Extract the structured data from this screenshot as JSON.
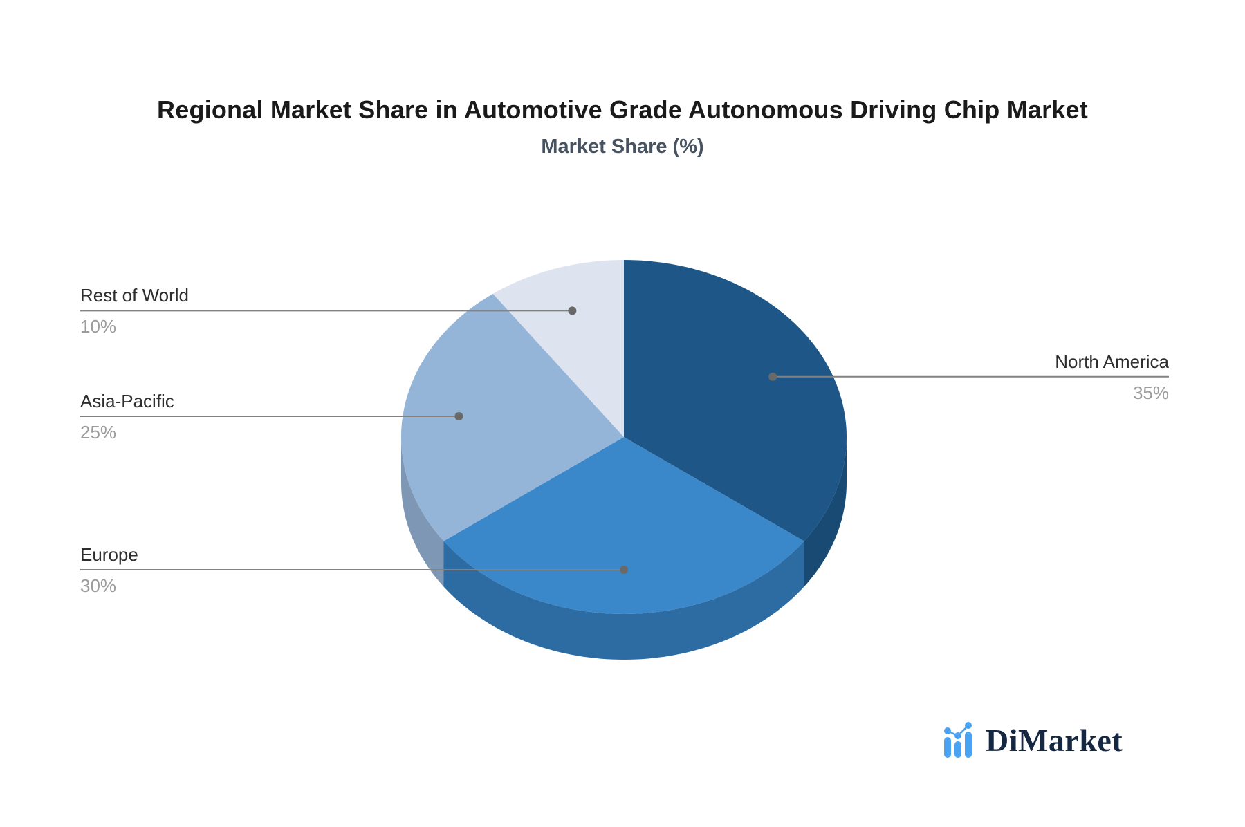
{
  "header": {
    "title": "Regional Market Share in Automotive Grade Autonomous Driving Chip Market",
    "subtitle": "Market Share (%)"
  },
  "chart_data": {
    "type": "pie",
    "style": "3d",
    "title": "Regional Market Share in Automotive Grade Autonomous Driving Chip Market",
    "subtitle": "Market Share (%)",
    "unit": "%",
    "start_angle_deg_clockwise_from_top": 0,
    "segments": [
      {
        "label": "North America",
        "value": 35,
        "pct_label": "35%",
        "color": "#1e5687",
        "side_color": "#184a74"
      },
      {
        "label": "Europe",
        "value": 30,
        "pct_label": "30%",
        "color": "#3a87ca",
        "side_color": "#2d6ca3"
      },
      {
        "label": "Asia-Pacific",
        "value": 25,
        "pct_label": "25%",
        "color": "#94b4d8",
        "side_color": "#7d97b4"
      },
      {
        "label": "Rest of World",
        "value": 10,
        "pct_label": "10%",
        "color": "#dde4ef"
      }
    ],
    "legend_position": "none",
    "leader_line_color": "#828282",
    "leader_dot_color": "#696969",
    "label_color": "#2e2e2e",
    "pct_color": "#9c9c9c"
  },
  "logo": {
    "text": "DiMarket",
    "icon": "bar-chart-icon",
    "text_color": "#152741",
    "icon_color": "#4aa2f2"
  }
}
